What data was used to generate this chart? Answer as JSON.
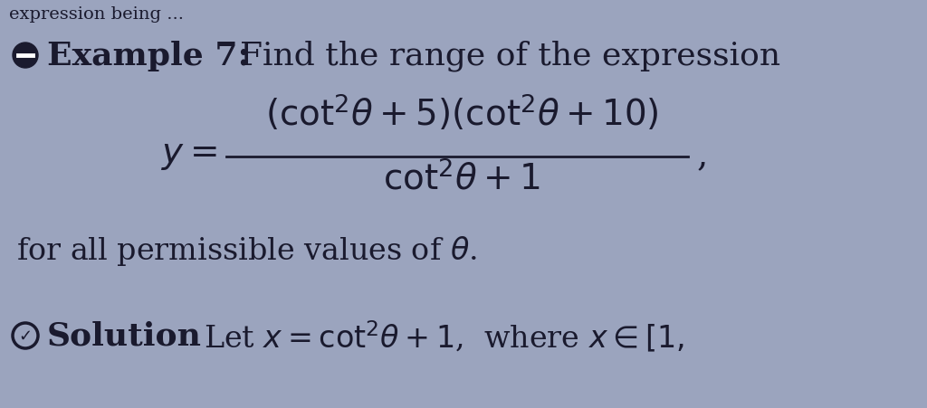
{
  "background_color": "#9ba4be",
  "text_color": "#1a1a2e",
  "figsize": [
    10.24,
    4.52
  ],
  "dpi": 100,
  "top_text": "expression being ...",
  "example_label": "Example 7:",
  "example_text": "Find the range of the expression",
  "numerator": "$(\\cot^{2}\\!\\theta + 5)(\\cot^{2}\\!\\theta + 10)$",
  "denominator": "$\\cot^{2}\\!\\theta + 1$",
  "y_label": "$y =$",
  "comma": ",",
  "footer_text": "for all permissible values of $\\theta$.",
  "solution_bold": "Solution",
  "solution_rest": "Let $x = \\cot^{2}\\!\\theta + 1$,  where $x \\in [1,$"
}
